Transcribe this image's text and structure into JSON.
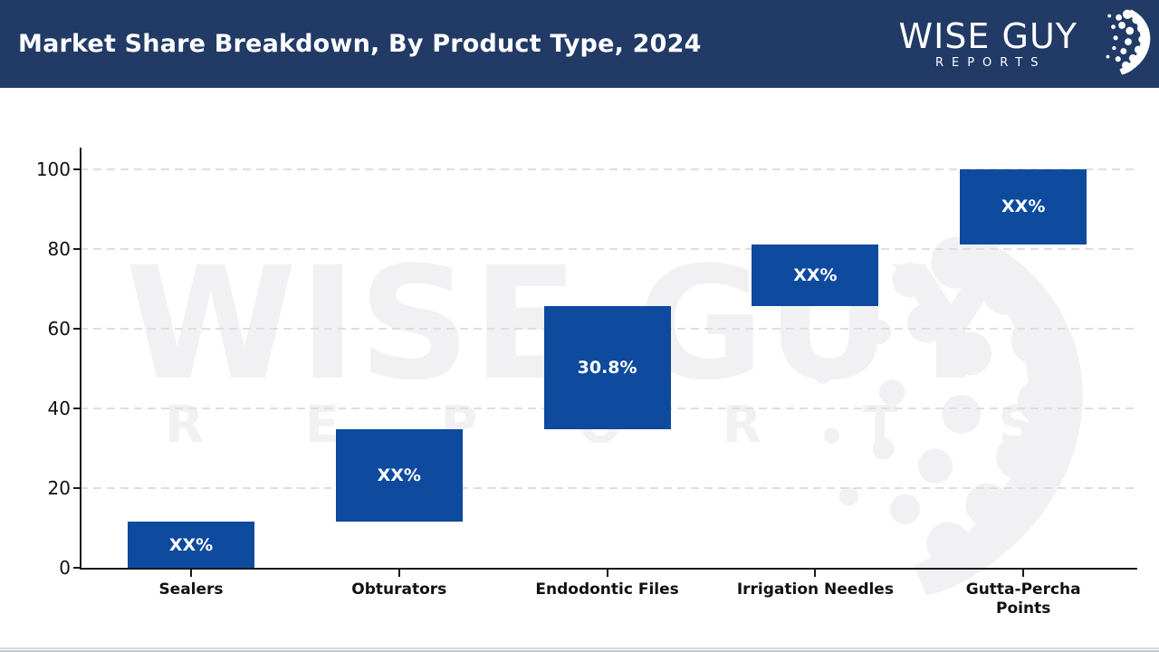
{
  "header": {
    "title": "Market Share Breakdown, By Product Type, 2024"
  },
  "logo": {
    "line1": "WISE GUY",
    "line2": "REPORTS"
  },
  "watermark": {
    "line1": "WISE GUY",
    "line2": "REPORTS"
  },
  "colors": {
    "header_bg": "#213a66",
    "bar": "#0e4a9e",
    "bar_label": "#ffffff",
    "axis": "#1a1a1a",
    "grid": "#dedede",
    "watermark": "#f1f1f3"
  },
  "chart_data": {
    "type": "bar",
    "subtype": "floating-waterfall",
    "title": "Market Share Breakdown, By Product Type, 2024",
    "categories": [
      "Sealers",
      "Obturators",
      "Endodontic Files",
      "Irrigation Needles",
      "Gutta-Percha\nPoints"
    ],
    "segments": [
      {
        "category": "Sealers",
        "start": 0,
        "end": 11.5,
        "label": "XX%"
      },
      {
        "category": "Obturators",
        "start": 11.5,
        "end": 34.7,
        "label": "XX%"
      },
      {
        "category": "Endodontic Files",
        "start": 34.7,
        "end": 65.5,
        "label": "30.8%"
      },
      {
        "category": "Irrigation Needles",
        "start": 65.6,
        "end": 81,
        "label": "XX%"
      },
      {
        "category": "Gutta-Percha Points",
        "start": 81,
        "end": 100,
        "label": "XX%"
      }
    ],
    "xlabel": "",
    "ylabel": "",
    "ylim": [
      0,
      100
    ],
    "yticks": [
      0,
      20,
      40,
      60,
      80,
      100
    ],
    "grid": {
      "horizontal": true,
      "style": "dashed"
    },
    "legend": "none"
  }
}
